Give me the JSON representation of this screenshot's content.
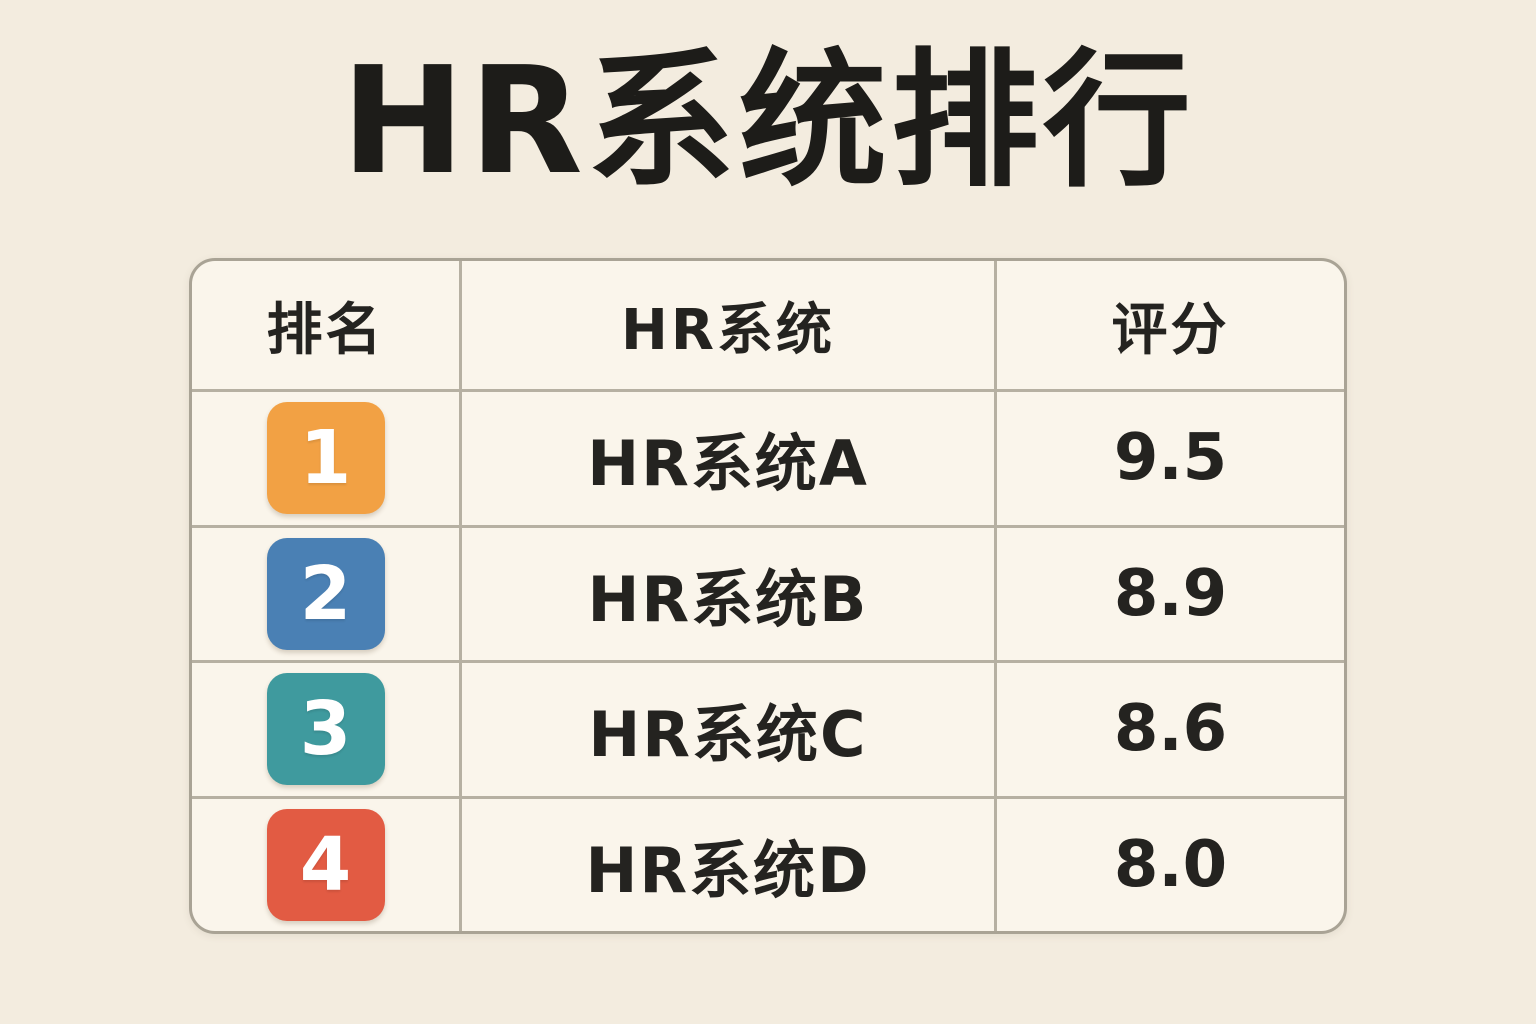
{
  "page": {
    "title": "HR系统排行",
    "background_color": "#f3ecdf",
    "cell_background_color": "#faf5eb",
    "grid_line_color": "#b6b0a2"
  },
  "table": {
    "headers": [
      "排名",
      "HR系统",
      "评分"
    ],
    "rows": [
      {
        "rank": "1",
        "system": "HR系统A",
        "score": "9.5",
        "badge_color": "#f2a144"
      },
      {
        "rank": "2",
        "system": "HR系统B",
        "score": "8.9",
        "badge_color": "#4a80b4"
      },
      {
        "rank": "3",
        "system": "HR系统C",
        "score": "8.6",
        "badge_color": "#3f9a9e"
      },
      {
        "rank": "4",
        "system": "HR系统D",
        "score": "8.0",
        "badge_color": "#e25b43"
      }
    ]
  },
  "chart_data": {
    "type": "table",
    "title": "HR系统排行",
    "columns": [
      "排名",
      "HR系统",
      "评分"
    ],
    "rows": [
      [
        1,
        "HR系统A",
        9.5
      ],
      [
        2,
        "HR系统B",
        8.9
      ],
      [
        3,
        "HR系统C",
        8.6
      ],
      [
        4,
        "HR系统D",
        8.0
      ]
    ],
    "badge_colors": [
      "#f2a144",
      "#4a80b4",
      "#3f9a9e",
      "#e25b43"
    ]
  }
}
